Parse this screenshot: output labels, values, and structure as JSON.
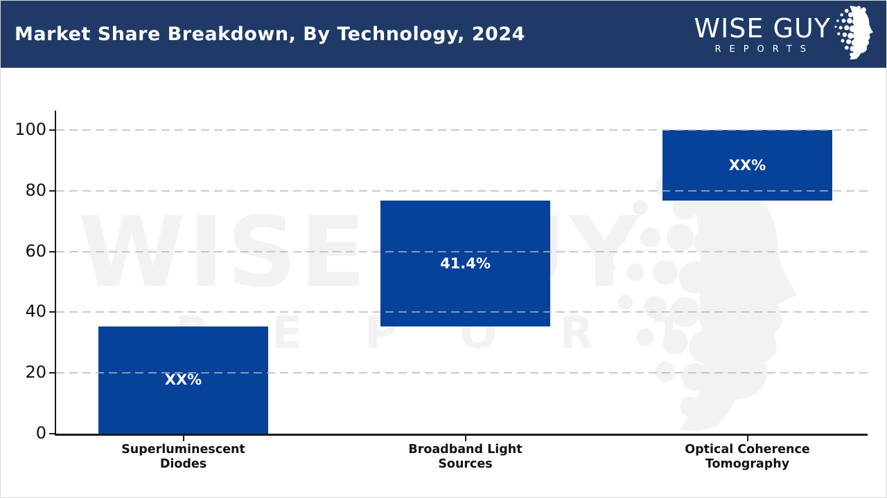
{
  "header": {
    "title": "Market Share Breakdown, By Technology, 2024",
    "logo": {
      "line1": "WISE GUY",
      "line2": "REPORTS"
    }
  },
  "watermark": {
    "line1": "WISE GUY",
    "line2": "REPORTS"
  },
  "colors": {
    "header_bg": "#1f3a66",
    "bar": "#06419a",
    "bar_label": "#ffffff",
    "axis": "#1a1a1a",
    "grid": "#cbced3",
    "watermark": "#f2f2f4",
    "title_text": "#ffffff",
    "tick_text": "#111111"
  },
  "chart_data": {
    "type": "bar",
    "subtype": "waterfall",
    "title": "Market Share Breakdown, By Technology, 2024",
    "categories": [
      "Superluminescent Diodes",
      "Broadband Light Sources",
      "Optical Coherence Tomography"
    ],
    "bars": [
      {
        "label_lines": [
          "Superluminescent",
          "Diodes"
        ],
        "base": 0,
        "value": 35.4,
        "top": 35.4,
        "data_label": "XX%"
      },
      {
        "label_lines": [
          "Broadband Light",
          "Sources"
        ],
        "base": 35.4,
        "value": 41.4,
        "top": 76.8,
        "data_label": "41.4%"
      },
      {
        "label_lines": [
          "Optical Coherence",
          "Tomography"
        ],
        "base": 76.8,
        "value": 23.2,
        "top": 100,
        "data_label": "XX%"
      }
    ],
    "xlabel": "",
    "ylabel": "",
    "ylim": [
      0,
      100
    ],
    "yticks": [
      0,
      20,
      40,
      60,
      80,
      100
    ],
    "grid": "horizontal-dashed",
    "legend": "none",
    "bar_color": "#06419a"
  }
}
